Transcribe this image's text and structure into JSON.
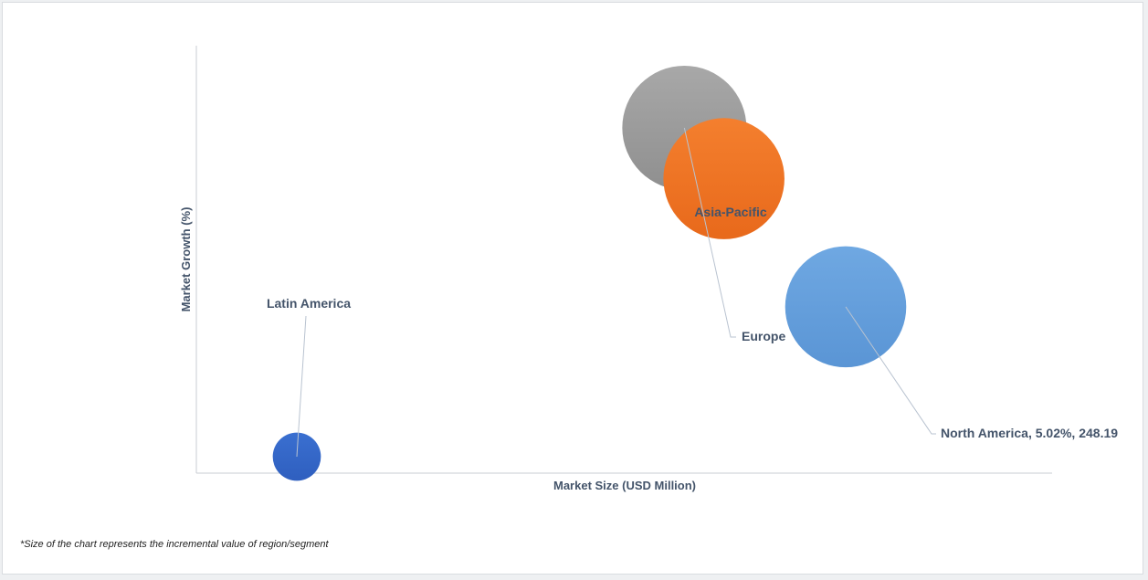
{
  "chart_data": {
    "type": "bubble",
    "xlabel": "Market Size (USD Million)",
    "ylabel": "Market Growth (%)",
    "grid": false,
    "legend": "none",
    "series": [
      {
        "name": "Latin America",
        "label": "Latin America",
        "x": 40,
        "y": 4.4,
        "size": 15,
        "color": "#3a6fd0",
        "color_dark": "#2f5fbf"
      },
      {
        "name": "Europe",
        "label": "Europe",
        "x": 187,
        "y": 5.76,
        "size": 100,
        "color": "#a8a8a8",
        "color_dark": "#8f8f8f"
      },
      {
        "name": "Asia-Pacific",
        "label": "Asia-Pacific",
        "x": 202,
        "y": 5.55,
        "size": 95,
        "color": "#f47f2e",
        "color_dark": "#e8691b"
      },
      {
        "name": "North America",
        "label": "North America, 5.02%, 248.19",
        "x": 248.19,
        "y": 5.02,
        "size": 95,
        "color": "#6fa8e2",
        "color_dark": "#5a95d5"
      }
    ]
  },
  "footnote": "*Size of the chart represents the incremental value of region/segment"
}
